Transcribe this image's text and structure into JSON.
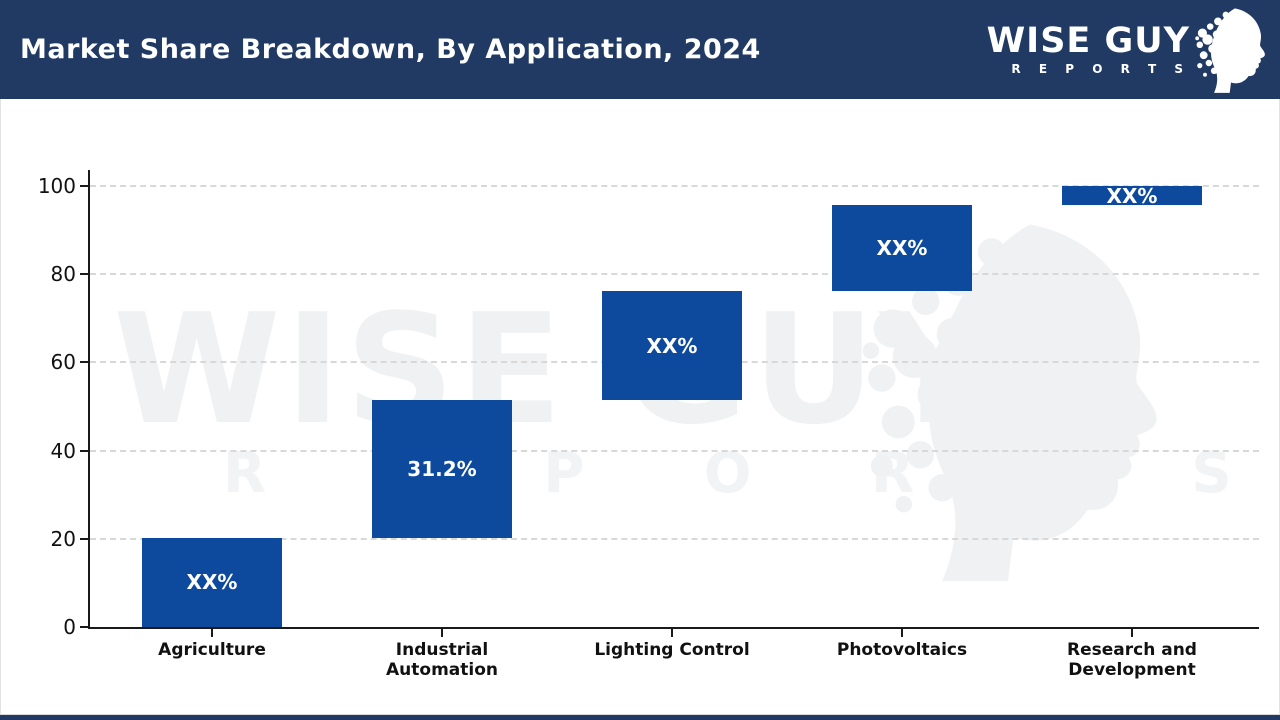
{
  "header": {
    "title": "Market Share Breakdown, By Application, 2024",
    "background": "#213a64",
    "brand": {
      "line1": "WISE GUY",
      "line2": "R E P O R T S"
    }
  },
  "watermark": {
    "line1": "WISE GUY",
    "line2": "R E P O R T S"
  },
  "chart_data": {
    "type": "bar",
    "subtype": "floating-segment-waterfall",
    "title": "Market Share Breakdown, By Application, 2024",
    "xlabel": "",
    "ylabel": "",
    "categories": [
      "Agriculture",
      "Industrial\nAutomation",
      "Lighting Control",
      "Photovoltaics",
      "Research and\nDevelopment"
    ],
    "segments": [
      {
        "category": "Agriculture",
        "start": 0,
        "end": 20.2,
        "label": "XX%"
      },
      {
        "category": "Industrial Automation",
        "start": 20.2,
        "end": 51.4,
        "label": "31.2%",
        "value": 31.2
      },
      {
        "category": "Lighting Control",
        "start": 51.4,
        "end": 76.2,
        "label": "XX%"
      },
      {
        "category": "Photovoltaics",
        "start": 76.2,
        "end": 95.6,
        "label": "XX%"
      },
      {
        "category": "Research and Development",
        "start": 95.6,
        "end": 100,
        "label": "XX%"
      }
    ],
    "yticks": [
      0,
      20,
      40,
      60,
      80,
      100
    ],
    "ylim": [
      0,
      103.6
    ],
    "grid": "horizontal-dashed",
    "legend": null,
    "bar_color": "#0d4a9e",
    "bar_label_color": "#ffffff",
    "axis_color": "#1a1a1a",
    "gridline_color": "#d8d8d8",
    "watermark_color": "#f0f1f3"
  }
}
